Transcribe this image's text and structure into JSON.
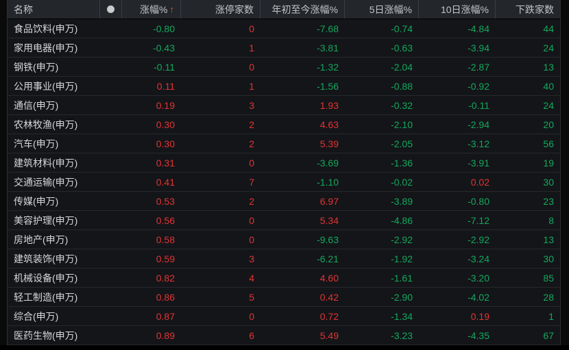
{
  "colors": {
    "up_red": "#e23434",
    "down_green": "#12a95c",
    "sort_arrow": "#f0502a",
    "header_bg": "#23262b",
    "row_bg": "#141519"
  },
  "table": {
    "sort": {
      "column": "chg",
      "direction": "asc",
      "icon": "↑"
    },
    "columns": [
      {
        "key": "name",
        "label": "名称",
        "color": "plain"
      },
      {
        "key": "signal",
        "label": "",
        "color": "plain",
        "icon": "circle"
      },
      {
        "key": "chg",
        "label": "涨幅%",
        "color": "sign"
      },
      {
        "key": "limit",
        "label": "涨停家数",
        "color": "red"
      },
      {
        "key": "ytd",
        "label": "年初至今涨幅%",
        "color": "sign"
      },
      {
        "key": "d5",
        "label": "5日涨幅%",
        "color": "sign"
      },
      {
        "key": "d10",
        "label": "10日涨幅%",
        "color": "sign"
      },
      {
        "key": "dec",
        "label": "下跌家数",
        "color": "green"
      }
    ],
    "rows": [
      {
        "name": "食品饮料(申万)",
        "chg": "-0.80",
        "limit": "0",
        "ytd": "-7.68",
        "d5": "-0.74",
        "d10": "-4.84",
        "dec": "44"
      },
      {
        "name": "家用电器(申万)",
        "chg": "-0.43",
        "limit": "1",
        "ytd": "-3.81",
        "d5": "-0.63",
        "d10": "-3.94",
        "dec": "24"
      },
      {
        "name": "钢铁(申万)",
        "chg": "-0.11",
        "limit": "0",
        "ytd": "-1.32",
        "d5": "-2.04",
        "d10": "-2.87",
        "dec": "13"
      },
      {
        "name": "公用事业(申万)",
        "chg": "0.11",
        "limit": "1",
        "ytd": "-1.56",
        "d5": "-0.88",
        "d10": "-0.92",
        "dec": "40"
      },
      {
        "name": "通信(申万)",
        "chg": "0.19",
        "limit": "3",
        "ytd": "1.93",
        "d5": "-0.32",
        "d10": "-0.11",
        "dec": "24"
      },
      {
        "name": "农林牧渔(申万)",
        "chg": "0.30",
        "limit": "2",
        "ytd": "4.63",
        "d5": "-2.10",
        "d10": "-2.94",
        "dec": "20"
      },
      {
        "name": "汽车(申万)",
        "chg": "0.30",
        "limit": "2",
        "ytd": "5.39",
        "d5": "-2.05",
        "d10": "-3.12",
        "dec": "56"
      },
      {
        "name": "建筑材料(申万)",
        "chg": "0.31",
        "limit": "0",
        "ytd": "-3.69",
        "d5": "-1.36",
        "d10": "-3.91",
        "dec": "19"
      },
      {
        "name": "交通运输(申万)",
        "chg": "0.41",
        "limit": "7",
        "ytd": "-1.10",
        "d5": "-0.02",
        "d10": "0.02",
        "dec": "30"
      },
      {
        "name": "传媒(申万)",
        "chg": "0.53",
        "limit": "2",
        "ytd": "6.97",
        "d5": "-3.89",
        "d10": "-0.80",
        "dec": "23"
      },
      {
        "name": "美容护理(申万)",
        "chg": "0.56",
        "limit": "0",
        "ytd": "5.34",
        "d5": "-4.86",
        "d10": "-7.12",
        "dec": "8"
      },
      {
        "name": "房地产(申万)",
        "chg": "0.58",
        "limit": "0",
        "ytd": "-9.63",
        "d5": "-2.92",
        "d10": "-2.92",
        "dec": "13"
      },
      {
        "name": "建筑装饰(申万)",
        "chg": "0.59",
        "limit": "3",
        "ytd": "-6.21",
        "d5": "-1.92",
        "d10": "-3.24",
        "dec": "30"
      },
      {
        "name": "机械设备(申万)",
        "chg": "0.82",
        "limit": "4",
        "ytd": "4.60",
        "d5": "-1.61",
        "d10": "-3.20",
        "dec": "85"
      },
      {
        "name": "轻工制造(申万)",
        "chg": "0.86",
        "limit": "5",
        "ytd": "0.42",
        "d5": "-2.90",
        "d10": "-4.02",
        "dec": "28"
      },
      {
        "name": "综合(申万)",
        "chg": "0.87",
        "limit": "0",
        "ytd": "0.72",
        "d5": "-1.34",
        "d10": "0.19",
        "dec": "1"
      },
      {
        "name": "医药生物(申万)",
        "chg": "0.89",
        "limit": "6",
        "ytd": "5.49",
        "d5": "-3.23",
        "d10": "-4.35",
        "dec": "67"
      }
    ]
  }
}
